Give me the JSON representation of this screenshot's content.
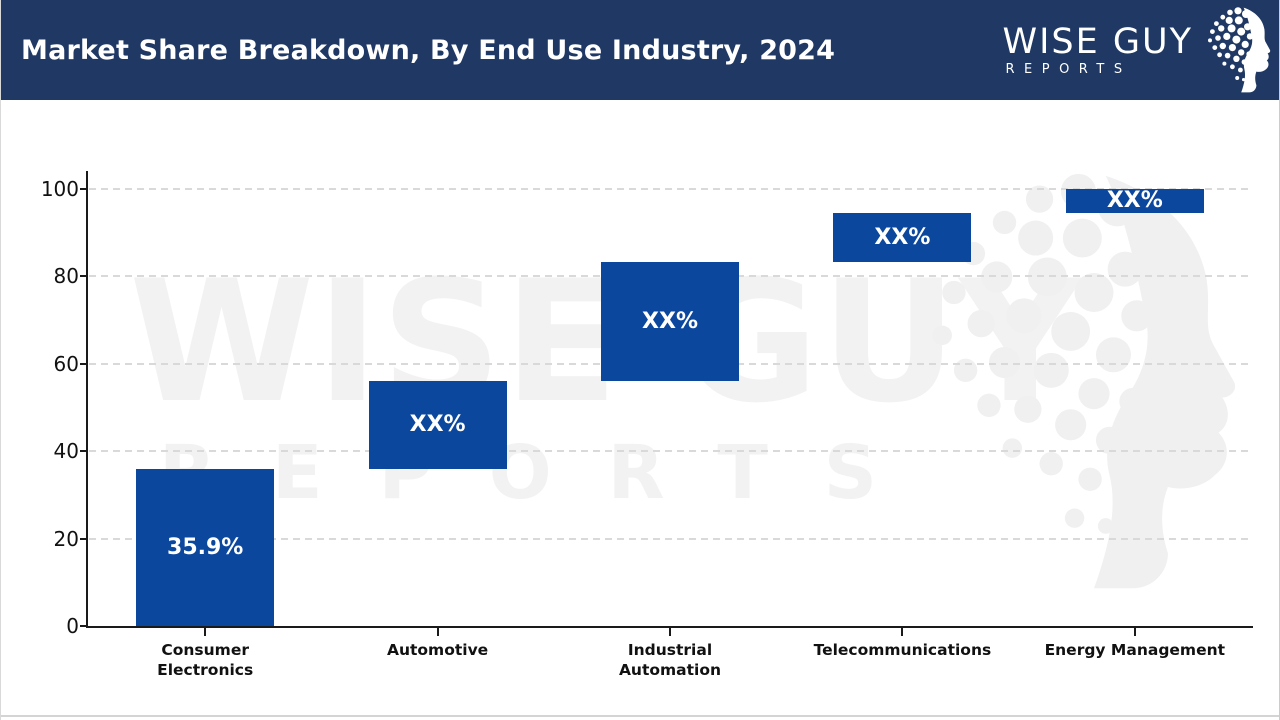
{
  "header": {
    "title": "Market Share Breakdown, By End Use Industry, 2024",
    "logo_line1": "WISE GUY",
    "logo_line2": "REPORTS"
  },
  "watermark": {
    "line1": "WISE GUY",
    "line2": "REPORTS"
  },
  "colors": {
    "header_bg": "#1f3864",
    "bar": "#0c479e",
    "grid": "#d9d9d9",
    "axis": "#1a1a1a",
    "watermark": "#f2f2f2",
    "bar_label": "#ffffff"
  },
  "chart_data": {
    "type": "bar",
    "variant": "waterfall",
    "title": "Market Share Breakdown, By End Use Industry, 2024",
    "categories": [
      "Consumer Electronics",
      "Automotive",
      "Industrial Automation",
      "Telecommunications",
      "Energy Management"
    ],
    "bars": [
      {
        "category": "Consumer Electronics",
        "start": 0,
        "end": 35.9,
        "label": "35.9%"
      },
      {
        "category": "Automotive",
        "start": 35.9,
        "end": 56.1,
        "label": "XX%"
      },
      {
        "category": "Industrial Automation",
        "start": 56.1,
        "end": 83.3,
        "label": "XX%"
      },
      {
        "category": "Telecommunications",
        "start": 83.3,
        "end": 94.5,
        "label": "XX%"
      },
      {
        "category": "Energy Management",
        "start": 94.5,
        "end": 100,
        "label": "XX%"
      }
    ],
    "xlabel": "",
    "ylabel": "",
    "ylim": [
      0,
      100
    ],
    "yticks": [
      0,
      20,
      40,
      60,
      80,
      100
    ],
    "grid": "horizontal-dashed",
    "legend": "none"
  }
}
